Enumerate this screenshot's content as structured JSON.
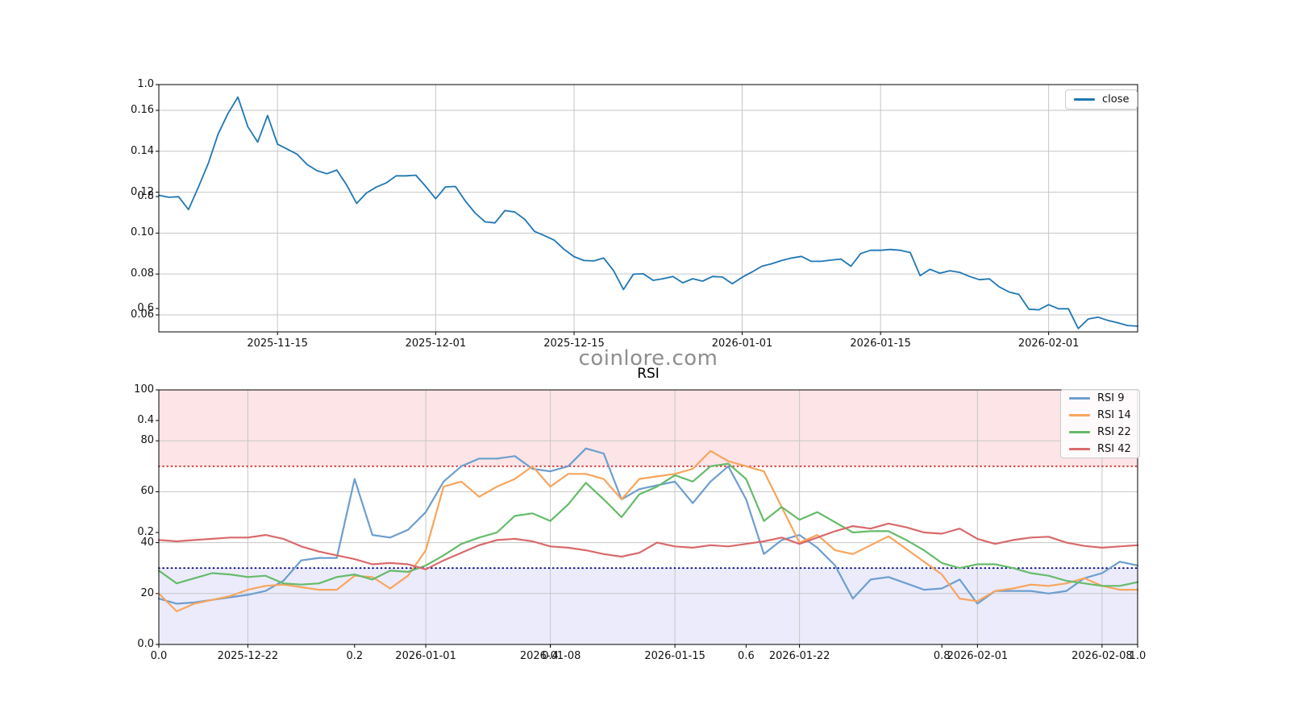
{
  "watermark": {
    "text": "coinlore.com"
  },
  "colors": {
    "close": "#1f77b4",
    "rsi9": "#6d9ecf",
    "rsi14": "#f8a55c",
    "rsi22": "#66bb6a",
    "rsi42": "#d9696b",
    "overbought_line": "#d62728",
    "oversold_line": "#00008b",
    "overbought_fill": "rgba(230,30,60,0.12)",
    "oversold_fill": "rgba(70,70,230,0.11)",
    "grid": "#c6c6c6",
    "watermark_color": "#8e8e8e"
  },
  "overlay_axis": {
    "y_labels": [
      "1.0",
      "0.8",
      "0.6",
      "0.4",
      "0.2",
      "0.0"
    ],
    "x_labels": [
      "0.0",
      "0.2",
      "0.4",
      "0.6",
      "0.8",
      "1.0"
    ]
  },
  "chart_data": [
    {
      "type": "line",
      "name": "price-chart",
      "title": "",
      "legend_position": "upper right",
      "grid": true,
      "ylim": [
        0.0517,
        0.1726
      ],
      "y_ticks": [
        {
          "label": "0.16",
          "value": 0.16
        },
        {
          "label": "0.14",
          "value": 0.14
        },
        {
          "label": "0.12",
          "value": 0.12
        },
        {
          "label": "0.10",
          "value": 0.1
        },
        {
          "label": "0.08",
          "value": 0.08
        },
        {
          "label": "0.06",
          "value": 0.06
        }
      ],
      "x_ticks": [
        {
          "label": "2025-11-15",
          "index": 12
        },
        {
          "label": "2025-12-01",
          "index": 28
        },
        {
          "label": "2025-12-15",
          "index": 42
        },
        {
          "label": "2026-01-01",
          "index": 59
        },
        {
          "label": "2026-01-15",
          "index": 73
        },
        {
          "label": "2026-02-01",
          "index": 90
        }
      ],
      "x": [
        "2025-11-03",
        "2025-11-04",
        "2025-11-05",
        "2025-11-06",
        "2025-11-07",
        "2025-11-08",
        "2025-11-09",
        "2025-11-10",
        "2025-11-11",
        "2025-11-12",
        "2025-11-13",
        "2025-11-14",
        "2025-11-15",
        "2025-11-16",
        "2025-11-17",
        "2025-11-18",
        "2025-11-19",
        "2025-11-20",
        "2025-11-21",
        "2025-11-22",
        "2025-11-23",
        "2025-11-24",
        "2025-11-25",
        "2025-11-26",
        "2025-11-27",
        "2025-11-28",
        "2025-11-29",
        "2025-11-30",
        "2025-12-01",
        "2025-12-02",
        "2025-12-03",
        "2025-12-04",
        "2025-12-05",
        "2025-12-06",
        "2025-12-07",
        "2025-12-08",
        "2025-12-09",
        "2025-12-10",
        "2025-12-11",
        "2025-12-12",
        "2025-12-13",
        "2025-12-14",
        "2025-12-15",
        "2025-12-16",
        "2025-12-17",
        "2025-12-18",
        "2025-12-19",
        "2025-12-20",
        "2025-12-21",
        "2025-12-22",
        "2025-12-23",
        "2025-12-24",
        "2025-12-25",
        "2025-12-26",
        "2025-12-27",
        "2025-12-28",
        "2025-12-29",
        "2025-12-30",
        "2025-12-31",
        "2026-01-01",
        "2026-01-02",
        "2026-01-03",
        "2026-01-04",
        "2026-01-05",
        "2026-01-06",
        "2026-01-07",
        "2026-01-08",
        "2026-01-09",
        "2026-01-10",
        "2026-01-11",
        "2026-01-12",
        "2026-01-13",
        "2026-01-14",
        "2026-01-15",
        "2026-01-16",
        "2026-01-17",
        "2026-01-18",
        "2026-01-19",
        "2026-01-20",
        "2026-01-21",
        "2026-01-22",
        "2026-01-23",
        "2026-01-24",
        "2026-01-25",
        "2026-01-26",
        "2026-01-27",
        "2026-01-28",
        "2026-01-29",
        "2026-01-30",
        "2026-01-31",
        "2026-02-01",
        "2026-02-02",
        "2026-02-03",
        "2026-02-04",
        "2026-02-05",
        "2026-02-06",
        "2026-02-07",
        "2026-02-08",
        "2026-02-09",
        "2026-02-10"
      ],
      "series": [
        {
          "name": "close",
          "color": "#1f77b4",
          "width": 1.8,
          "values": [
            0.1185,
            0.1175,
            0.1178,
            0.1115,
            0.1225,
            0.134,
            0.1485,
            0.1585,
            0.1665,
            0.152,
            0.1445,
            0.1575,
            0.1435,
            0.141,
            0.1385,
            0.1335,
            0.1305,
            0.129,
            0.1308,
            0.1235,
            0.1145,
            0.1196,
            0.1225,
            0.1245,
            0.128,
            0.128,
            0.1283,
            0.1228,
            0.1168,
            0.1226,
            0.1228,
            0.1157,
            0.1098,
            0.1055,
            0.105,
            0.111,
            0.1103,
            0.1068,
            0.1008,
            0.0988,
            0.0965,
            0.092,
            0.0885,
            0.0866,
            0.0864,
            0.0878,
            0.0816,
            0.0724,
            0.0799,
            0.0801,
            0.0769,
            0.0777,
            0.0788,
            0.0757,
            0.0777,
            0.0765,
            0.0788,
            0.0785,
            0.0752,
            0.0784,
            0.081,
            0.0838,
            0.085,
            0.0866,
            0.0878,
            0.0886,
            0.0862,
            0.0862,
            0.0868,
            0.0873,
            0.0838,
            0.09,
            0.0916,
            0.0916,
            0.092,
            0.0916,
            0.0905,
            0.0792,
            0.0823,
            0.0804,
            0.0816,
            0.0808,
            0.0788,
            0.0772,
            0.0776,
            0.0737,
            0.0712,
            0.07,
            0.0628,
            0.0625,
            0.065,
            0.063,
            0.063,
            0.0533,
            0.058,
            0.0589,
            0.0573,
            0.0561,
            0.0548,
            0.0545
          ]
        }
      ]
    },
    {
      "type": "line",
      "name": "rsi-chart",
      "title": "RSI",
      "legend_position": "upper right",
      "grid": true,
      "ylim": [
        0,
        100
      ],
      "y_ticks": [
        {
          "label": "100",
          "value": 100
        },
        {
          "label": "80",
          "value": 80
        },
        {
          "label": "60",
          "value": 60
        },
        {
          "label": "40",
          "value": 40
        },
        {
          "label": "20",
          "value": 20
        }
      ],
      "x_ticks": [
        {
          "label": "2025-12-22",
          "index": 5
        },
        {
          "label": "2026-01-01",
          "index": 15
        },
        {
          "label": "2026-01-08",
          "index": 22
        },
        {
          "label": "2026-01-15",
          "index": 29
        },
        {
          "label": "2026-01-22",
          "index": 36
        },
        {
          "label": "2026-02-01",
          "index": 46
        },
        {
          "label": "2026-02-08",
          "index": 53
        }
      ],
      "hlines": [
        {
          "value": 70,
          "color": "#d62728",
          "style": "dotted"
        },
        {
          "value": 30,
          "color": "#00008b",
          "style": "dotted"
        }
      ],
      "bands": [
        {
          "from": 70,
          "to": 100,
          "color": "rgba(230,30,60,0.12)"
        },
        {
          "from": 0,
          "to": 30,
          "color": "rgba(70,70,230,0.11)"
        }
      ],
      "x": [
        "2025-12-17",
        "2025-12-18",
        "2025-12-19",
        "2025-12-20",
        "2025-12-21",
        "2025-12-22",
        "2025-12-23",
        "2025-12-24",
        "2025-12-25",
        "2025-12-26",
        "2025-12-27",
        "2025-12-28",
        "2025-12-29",
        "2025-12-30",
        "2025-12-31",
        "2026-01-01",
        "2026-01-02",
        "2026-01-03",
        "2026-01-04",
        "2026-01-05",
        "2026-01-06",
        "2026-01-07",
        "2026-01-08",
        "2026-01-09",
        "2026-01-10",
        "2026-01-11",
        "2026-01-12",
        "2026-01-13",
        "2026-01-14",
        "2026-01-15",
        "2026-01-16",
        "2026-01-17",
        "2026-01-18",
        "2026-01-19",
        "2026-01-20",
        "2026-01-21",
        "2026-01-22",
        "2026-01-23",
        "2026-01-24",
        "2026-01-25",
        "2026-01-26",
        "2026-01-27",
        "2026-01-28",
        "2026-01-29",
        "2026-01-30",
        "2026-01-31",
        "2026-02-01",
        "2026-02-02",
        "2026-02-03",
        "2026-02-04",
        "2026-02-05",
        "2026-02-06",
        "2026-02-07",
        "2026-02-08",
        "2026-02-09",
        "2026-02-10"
      ],
      "series": [
        {
          "name": "RSI 9",
          "color": "#6d9ecf",
          "width": 2.2,
          "values": [
            18,
            16,
            16.5,
            17.5,
            18.5,
            19.5,
            21,
            25,
            33,
            34,
            34,
            65,
            43,
            42,
            45,
            52,
            64,
            70,
            73,
            73,
            74,
            69,
            68,
            70,
            77,
            75,
            57,
            61,
            62.5,
            64,
            55.5,
            64,
            70,
            57,
            35.5,
            41,
            43,
            38,
            31,
            18,
            25.5,
            26.5,
            24,
            21.5,
            22,
            25.5,
            16,
            21,
            21,
            21,
            20,
            21,
            26,
            28,
            32.5,
            31
          ]
        },
        {
          "name": "RSI 14",
          "color": "#f8a55c",
          "width": 2.2,
          "values": [
            20,
            13,
            16,
            17.5,
            19,
            21.5,
            23,
            23.5,
            22.5,
            21.5,
            21.5,
            27,
            26.5,
            22,
            27,
            37,
            62,
            64,
            58,
            62,
            65,
            70,
            62,
            67,
            67,
            65,
            57,
            65,
            66,
            67,
            69,
            76,
            72,
            70,
            68,
            54,
            40,
            43,
            37,
            35.5,
            39,
            42.5,
            37.5,
            32.5,
            27.5,
            18,
            17,
            21,
            22,
            23.5,
            23,
            24,
            26,
            23,
            21.5,
            21.5
          ]
        },
        {
          "name": "RSI 22",
          "color": "#66bb6a",
          "width": 2.2,
          "values": [
            29,
            24,
            26,
            28,
            27.5,
            26.5,
            27,
            24,
            23.5,
            24,
            26.5,
            27.5,
            25.5,
            29,
            28.5,
            31,
            35,
            39.5,
            42,
            44,
            50.5,
            51.5,
            48.5,
            55,
            63.5,
            57,
            50,
            59,
            62,
            66.5,
            64,
            70,
            71,
            65,
            48.5,
            54,
            49,
            52,
            48,
            44,
            44.5,
            44.5,
            41,
            37,
            32,
            30,
            31.5,
            31.5,
            30,
            28,
            27,
            25,
            24,
            23,
            23,
            24.5
          ]
        },
        {
          "name": "RSI 42",
          "color": "#d9696b",
          "width": 2.2,
          "values": [
            41,
            40.5,
            41,
            41.5,
            42,
            42,
            43,
            41.5,
            38.5,
            36.5,
            35,
            33.5,
            31.5,
            32,
            31.5,
            29.5,
            33,
            36,
            39,
            41,
            41.5,
            40.5,
            38.5,
            38,
            37,
            35.5,
            34.5,
            36,
            40,
            38.5,
            38,
            39,
            38.5,
            39.5,
            40.5,
            42,
            39.5,
            42,
            44.5,
            46.5,
            45.5,
            47.5,
            46,
            44,
            43.5,
            45.5,
            41.5,
            39.5,
            41,
            42,
            42.3,
            40,
            38.7,
            38,
            38.5,
            39
          ]
        }
      ]
    }
  ]
}
